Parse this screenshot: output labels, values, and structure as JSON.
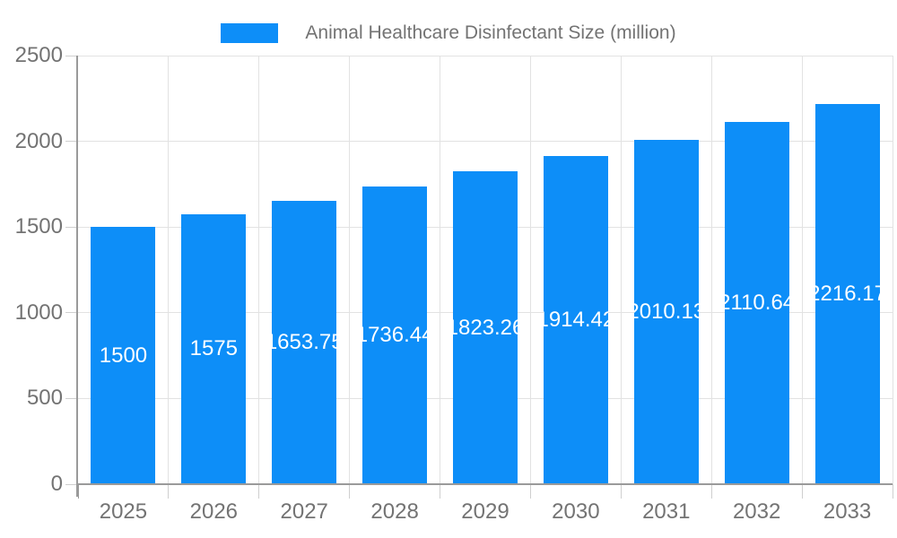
{
  "chart_data": {
    "type": "bar",
    "title": "Animal Healthcare Disinfectant Size (million)",
    "categories": [
      "2025",
      "2026",
      "2027",
      "2028",
      "2029",
      "2030",
      "2031",
      "2032",
      "2033"
    ],
    "values": [
      1500,
      1575,
      1653.75,
      1736.44,
      1823.26,
      1914.42,
      2010.13,
      2110.64,
      2216.17
    ],
    "value_labels": [
      "1500",
      "1575",
      "1653.75",
      "1736.44",
      "1823.26",
      "1914.42",
      "2010.13",
      "2110.64",
      "2216.17"
    ],
    "xlabel": "",
    "ylabel": "",
    "ylim": [
      0,
      2500
    ],
    "yticks": [
      0,
      500,
      1000,
      1500,
      2000,
      2500
    ],
    "grid": true,
    "legend_position": "top",
    "colors": {
      "bar": "#0d8ef8",
      "grid": "#e2e2e2",
      "tick": "#cfcfcf",
      "axis": "#9a9a9a",
      "text": "#737373",
      "value_label": "#ffffff",
      "background": "#ffffff"
    }
  }
}
